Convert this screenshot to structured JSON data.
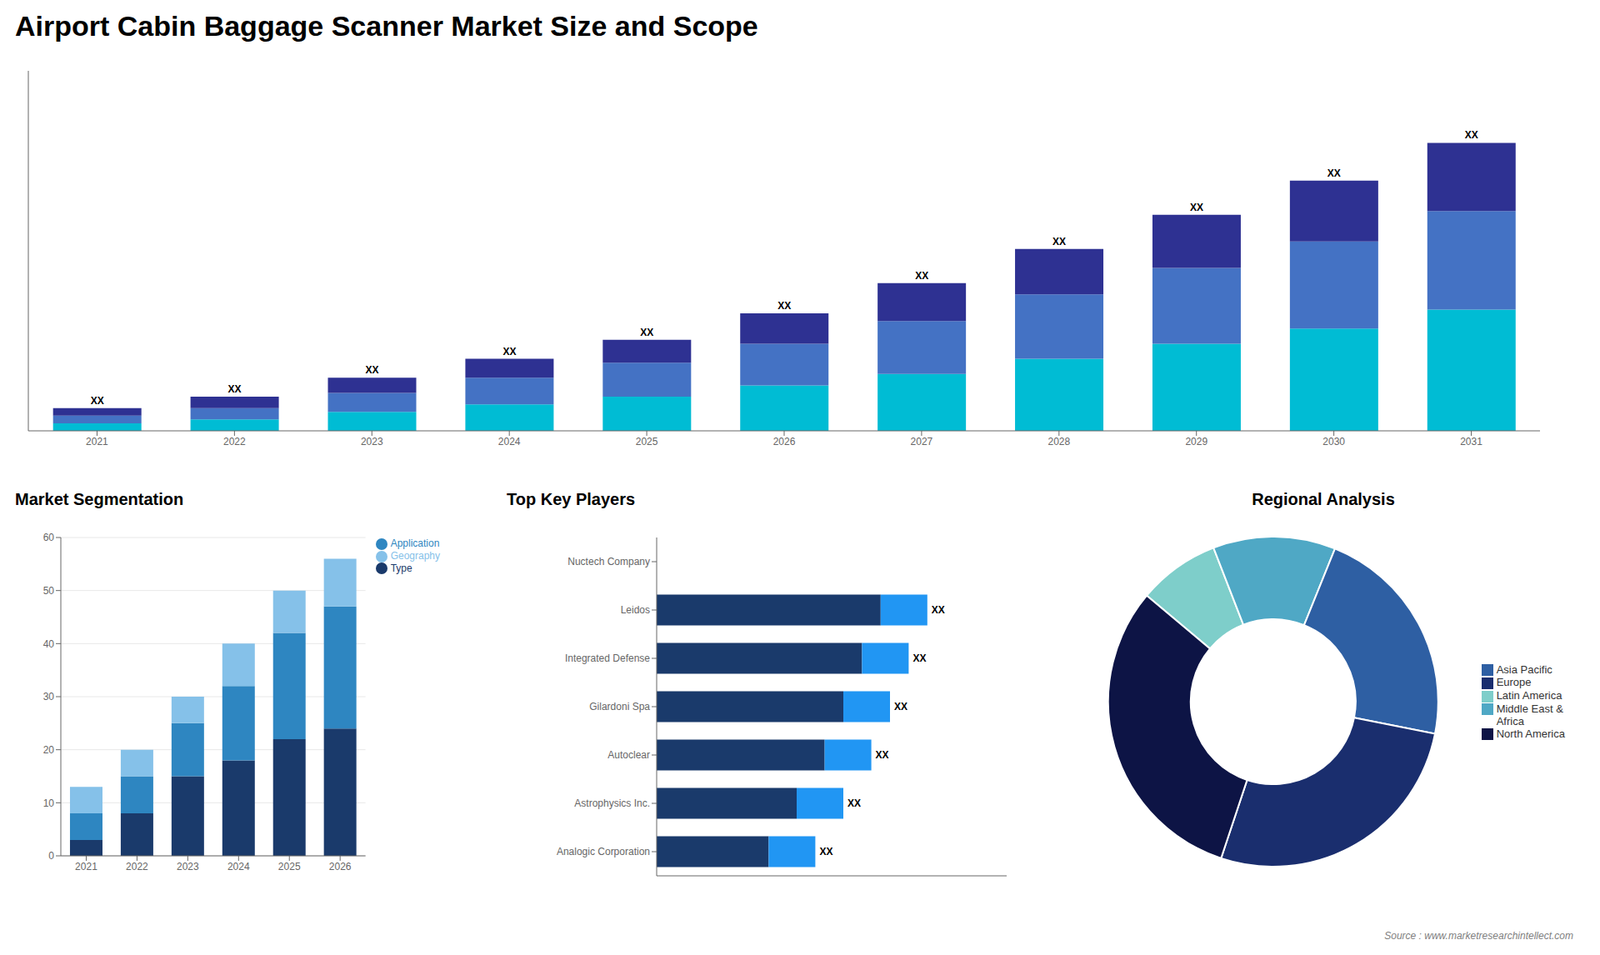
{
  "chart_data": [
    {
      "type": "bar",
      "title": "Airport Cabin Baggage Scanner Market Size and Scope",
      "stacked": true,
      "categories": [
        "2021",
        "2022",
        "2023",
        "2024",
        "2025",
        "2026",
        "2027",
        "2028",
        "2029",
        "2030",
        "2031"
      ],
      "series": [
        {
          "color": "#00bcd4",
          "values": [
            2,
            3,
            5,
            7,
            9,
            12,
            15,
            19,
            23,
            27,
            32
          ]
        },
        {
          "color": "#4472c4",
          "values": [
            2,
            3,
            5,
            7,
            9,
            11,
            14,
            17,
            20,
            23,
            26
          ]
        },
        {
          "color": "#2e3192",
          "values": [
            2,
            3,
            4,
            5,
            6,
            8,
            10,
            12,
            14,
            16,
            18
          ]
        }
      ],
      "ylim": [
        0,
        95
      ],
      "yticks": [],
      "tick_labels": "x",
      "grid": false,
      "annotations": [
        {
          "category": "2021",
          "text": "XX"
        },
        {
          "category": "2022",
          "text": "XX"
        },
        {
          "category": "2023",
          "text": "XX"
        },
        {
          "category": "2024",
          "text": "XX"
        },
        {
          "category": "2025",
          "text": "XX"
        },
        {
          "category": "2026",
          "text": "XX"
        },
        {
          "category": "2027",
          "text": "XX"
        },
        {
          "category": "2028",
          "text": "XX"
        },
        {
          "category": "2029",
          "text": "XX"
        },
        {
          "category": "2030",
          "text": "XX"
        },
        {
          "category": "2031",
          "text": "XX"
        }
      ]
    },
    {
      "type": "bar",
      "title": "Market Segmentation",
      "stacked": true,
      "categories": [
        "2021",
        "2022",
        "2023",
        "2024",
        "2025",
        "2026"
      ],
      "series": [
        {
          "name": "Type",
          "color": "#1a3a6b",
          "values": [
            3,
            8,
            15,
            18,
            22,
            24
          ]
        },
        {
          "name": "Application",
          "color": "#2e86c1",
          "values": [
            5,
            7,
            10,
            14,
            20,
            23
          ]
        },
        {
          "name": "Geography",
          "color": "#85c1e9",
          "values": [
            5,
            5,
            5,
            8,
            8,
            9
          ]
        }
      ],
      "ylim": [
        0,
        60
      ],
      "yticks": [
        0,
        10,
        20,
        30,
        40,
        50,
        60
      ],
      "grid": true,
      "legend": "upper right"
    },
    {
      "type": "bar",
      "title": "Top Key Players",
      "orientation": "horizontal",
      "stacked": true,
      "categories": [
        "Nuctech Company",
        "Leidos",
        "Integrated Defense",
        "Gilardoni Spa",
        "Autoclear",
        "Astrophysics Inc.",
        "Analogic Corporation"
      ],
      "series": [
        {
          "color": "#1a3a6b",
          "values": [
            0,
            48,
            44,
            40,
            36,
            30,
            24
          ]
        },
        {
          "color": "#2196f3",
          "values": [
            0,
            10,
            10,
            10,
            10,
            10,
            10
          ]
        }
      ],
      "xlim": [
        0,
        75
      ],
      "xticks": [],
      "tick_labels": "y",
      "grid": false,
      "annotations": [
        {
          "category": "Leidos",
          "text": "XX"
        },
        {
          "category": "Integrated Defense",
          "text": "XX"
        },
        {
          "category": "Gilardoni Spa",
          "text": "XX"
        },
        {
          "category": "Autoclear",
          "text": "XX"
        },
        {
          "category": "Astrophysics Inc.",
          "text": "XX"
        },
        {
          "category": "Analogic Corporation",
          "text": "XX"
        }
      ]
    },
    {
      "type": "pie",
      "title": "Regional Analysis",
      "categories": [
        "Latin America",
        "Middle East &\nAfrica",
        "Asia Pacific",
        "Europe",
        "North America"
      ],
      "values": [
        8,
        12,
        22,
        27,
        31
      ],
      "colors": [
        "#7ececa",
        "#4fa8c5",
        "#2e5fa3",
        "#1a2e6e",
        "#0d1445"
      ],
      "legend": "right",
      "annotations": [
        {
          "text": "Source : www.marketresearchintellect.com"
        }
      ]
    }
  ]
}
